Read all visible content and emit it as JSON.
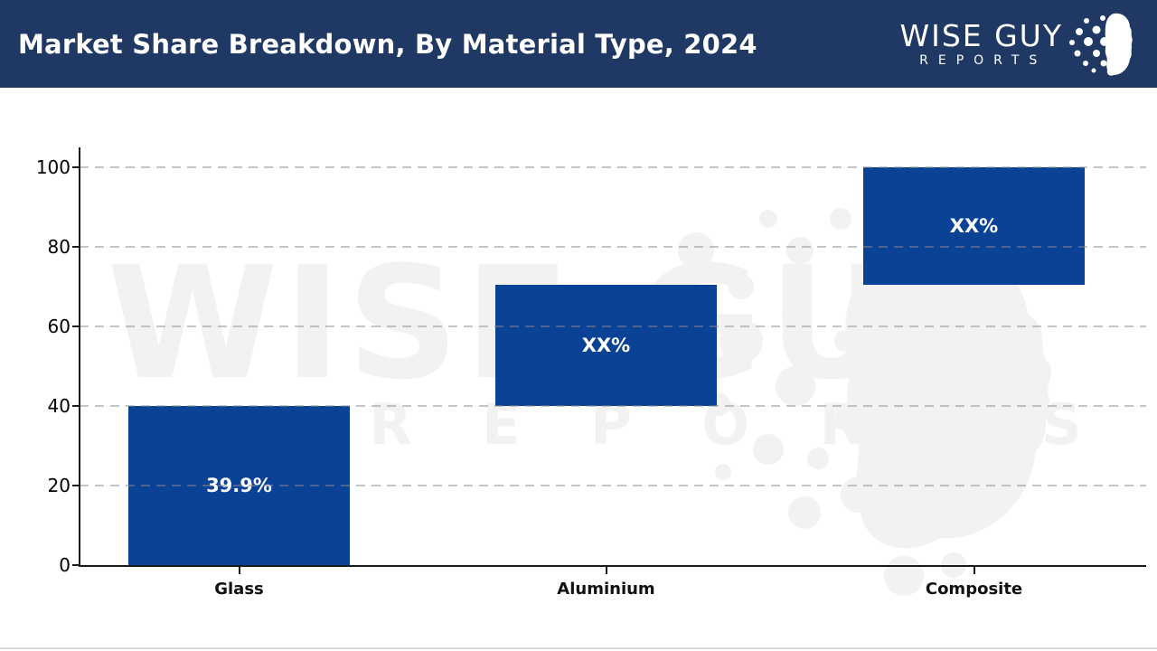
{
  "header": {
    "title": "Market Share Breakdown, By Material Type, 2024",
    "logo": {
      "line1": "WISE GUY",
      "line2": "REPORTS"
    }
  },
  "watermark": {
    "line1": "WISE GUY",
    "line2": "R E P O R T S"
  },
  "colors": {
    "header_bg": "#1f3864",
    "bar": "#0a4296",
    "bar_label": "#ffffff",
    "grid": "#8c8c8c",
    "axis": "#1a1a1a",
    "watermark": "#f2f2f2"
  },
  "chart_data": {
    "type": "bar",
    "subtype": "waterfall",
    "title": "Market Share Breakdown, By Material Type, 2024",
    "categories": [
      "Glass",
      "Aluminium",
      "Composite"
    ],
    "bars": [
      {
        "category": "Glass",
        "start": 0,
        "end": 39.9,
        "label": "39.9%"
      },
      {
        "category": "Aluminium",
        "start": 39.9,
        "end": 70.4,
        "label": "XX%"
      },
      {
        "category": "Composite",
        "start": 70.4,
        "end": 100,
        "label": "XX%"
      }
    ],
    "ylim": [
      0,
      100
    ],
    "yticks": [
      0,
      20,
      40,
      60,
      80,
      100
    ],
    "grid": "dashed-horizontal",
    "legend": "none",
    "xlabel": "",
    "ylabel": ""
  }
}
